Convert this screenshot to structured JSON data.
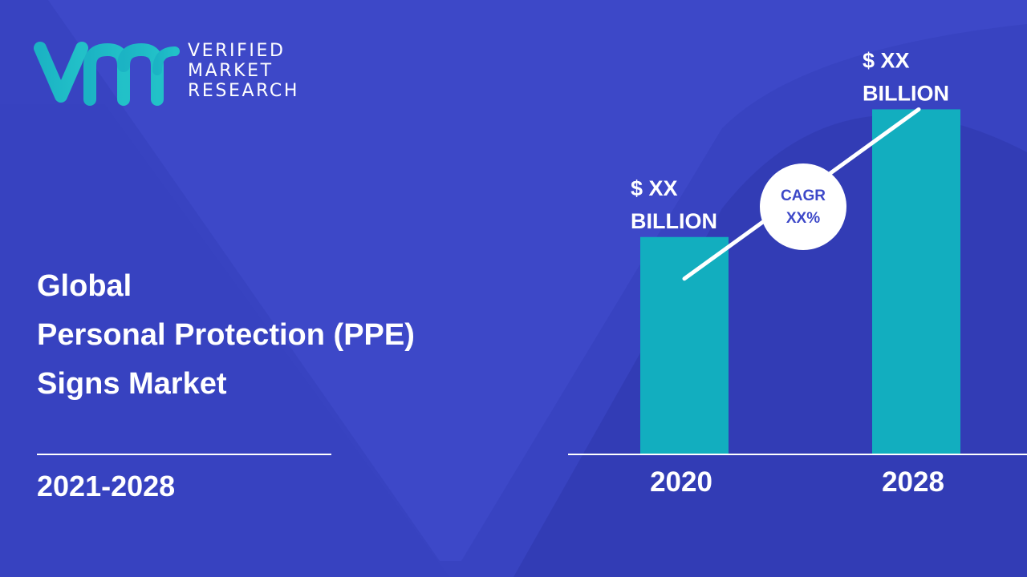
{
  "brand": {
    "line1": "VERIFIED",
    "line2": "MARKET",
    "line3": "RESEARCH",
    "mark": "vmr-logo-mark",
    "colors": {
      "mark_start": "#1bb3c4",
      "mark_end": "#22c1c8"
    }
  },
  "title": {
    "line1": "Global",
    "line2": "Personal Protection (PPE)",
    "line3": "Signs Market"
  },
  "period": "2021-2028",
  "colors": {
    "background": "#3d48c8",
    "background_shape": "#2f3ab2",
    "bar": "#12aebf",
    "text": "#ffffff"
  },
  "chart_data": {
    "type": "bar",
    "categories": [
      "2020",
      "2028"
    ],
    "values": [
      0.63,
      1.0
    ],
    "value_labels": [
      [
        "$ XX",
        "BILLION"
      ],
      [
        "$ XX",
        "BILLION"
      ]
    ],
    "ylim": [
      0,
      1.08
    ],
    "trend_line": true,
    "annotation": {
      "line1": "CAGR",
      "line2": "XX%"
    }
  }
}
